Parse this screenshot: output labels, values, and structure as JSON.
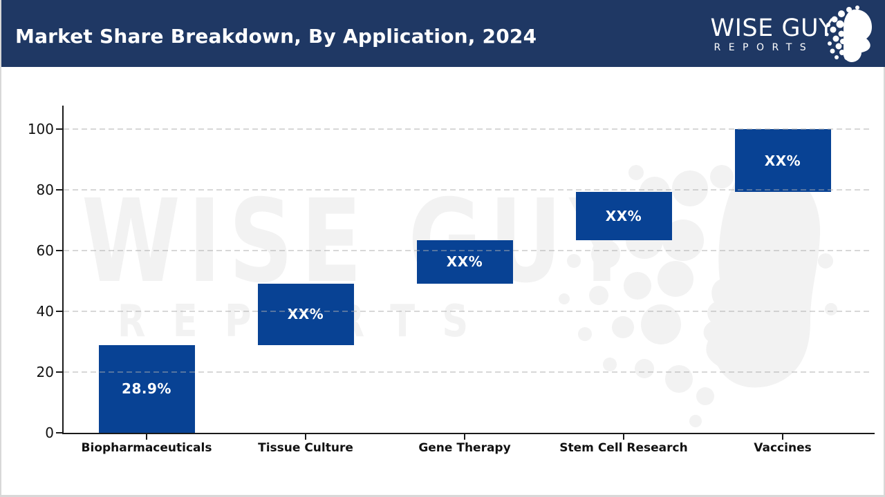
{
  "header": {
    "title": "Market Share Breakdown, By Application, 2024",
    "brand": {
      "line1": "WISE GUY",
      "line2": "REPORTS"
    }
  },
  "watermark": {
    "line1": "WISE GUY",
    "line2": "REPORTS"
  },
  "chart_data": {
    "type": "bar",
    "subtype": "waterfall",
    "title": "Market Share Breakdown, By Application, 2024",
    "categories": [
      "Biopharmaceuticals",
      "Tissue Culture",
      "Gene Therapy",
      "Stem Cell Research",
      "Vaccines"
    ],
    "segments": [
      {
        "category": "Biopharmaceuticals",
        "start": 0,
        "end": 28.9,
        "label": "28.9%"
      },
      {
        "category": "Tissue Culture",
        "start": 28.9,
        "end": 49.2,
        "label": "XX%"
      },
      {
        "category": "Gene Therapy",
        "start": 49.2,
        "end": 63.5,
        "label": "XX%"
      },
      {
        "category": "Stem Cell Research",
        "start": 63.5,
        "end": 79.3,
        "label": "XX%"
      },
      {
        "category": "Vaccines",
        "start": 79.3,
        "end": 100,
        "label": "XX%"
      }
    ],
    "yticks": [
      0,
      20,
      40,
      60,
      80,
      100
    ],
    "ylim": [
      0,
      107
    ],
    "xlabel": "",
    "ylabel": "",
    "grid": "horizontal-dashed",
    "legend": "none",
    "bar_color": "#084294",
    "bar_label_color": "#ffffff",
    "axis_color": "#1a1a1a",
    "header_color": "#1f3864",
    "watermark_color": "#f2f2f2"
  }
}
